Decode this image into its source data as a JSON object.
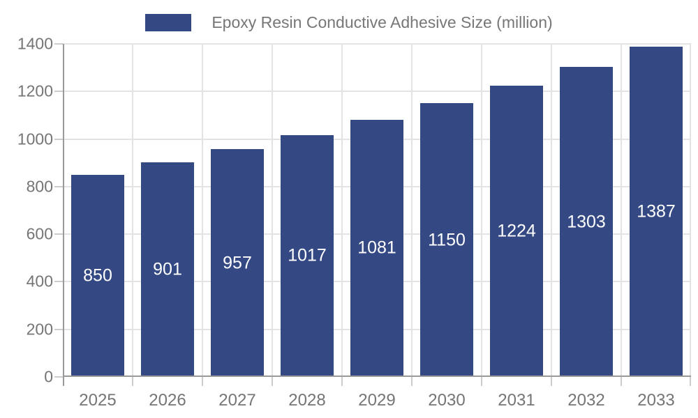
{
  "chart_data": {
    "type": "bar",
    "title": "",
    "legend_label": "Epoxy Resin Conductive Adhesive Size (million)",
    "legend_position": "top-center",
    "categories": [
      "2025",
      "2026",
      "2027",
      "2028",
      "2029",
      "2030",
      "2031",
      "2032",
      "2033"
    ],
    "values": [
      850,
      901,
      957,
      1017,
      1081,
      1150,
      1224,
      1303,
      1387
    ],
    "xlabel": "",
    "ylabel": "",
    "ylim": [
      0,
      1400
    ],
    "ytick_step": 200,
    "yticks": [
      0,
      200,
      400,
      600,
      800,
      1000,
      1200,
      1400
    ],
    "grid": true,
    "value_label_position": "inside-middle",
    "colors": {
      "bar": "#344983",
      "background": "#ffffff",
      "gridline": "#e3e3e3",
      "axis_line": "#9a9a9a",
      "tick": "#cccccc",
      "axis_text": "#757575",
      "legend_text": "#777777",
      "value_text": "#ffffff"
    }
  }
}
